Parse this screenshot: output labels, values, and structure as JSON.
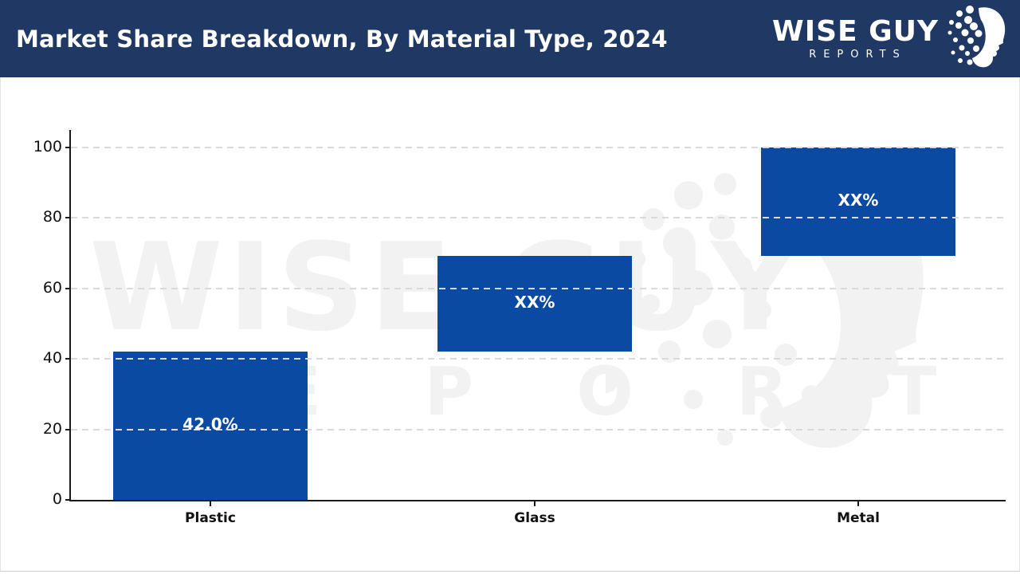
{
  "header": {
    "title": "Market Share Breakdown, By Material Type, 2024",
    "bg_color": "#1f3864",
    "logo": {
      "line1": "WISE GUY",
      "line2": "REPORTS"
    }
  },
  "watermark": {
    "line1": "WISE GUY",
    "line2": "R E P O R T S"
  },
  "chart_data": {
    "type": "bar",
    "subtype": "waterfall-stacked-breakdown",
    "title": "Market Share Breakdown, By Material Type, 2024",
    "categories": [
      "Plastic",
      "Glass",
      "Metal"
    ],
    "segments": [
      {
        "category": "Plastic",
        "start": 0,
        "end": 42.0,
        "label": "42.0%"
      },
      {
        "category": "Glass",
        "start": 42.0,
        "end": 69.2,
        "label": "XX%"
      },
      {
        "category": "Metal",
        "start": 69.2,
        "end": 100.0,
        "label": "XX%"
      }
    ],
    "xlabel": "",
    "ylabel": "",
    "ylim": [
      0,
      100
    ],
    "yticks": [
      0,
      20,
      40,
      60,
      80,
      100
    ],
    "grid": "horizontal-dashed",
    "legend": "none",
    "bar_color": "#0b4aa3",
    "label_color": "#ffffff"
  }
}
